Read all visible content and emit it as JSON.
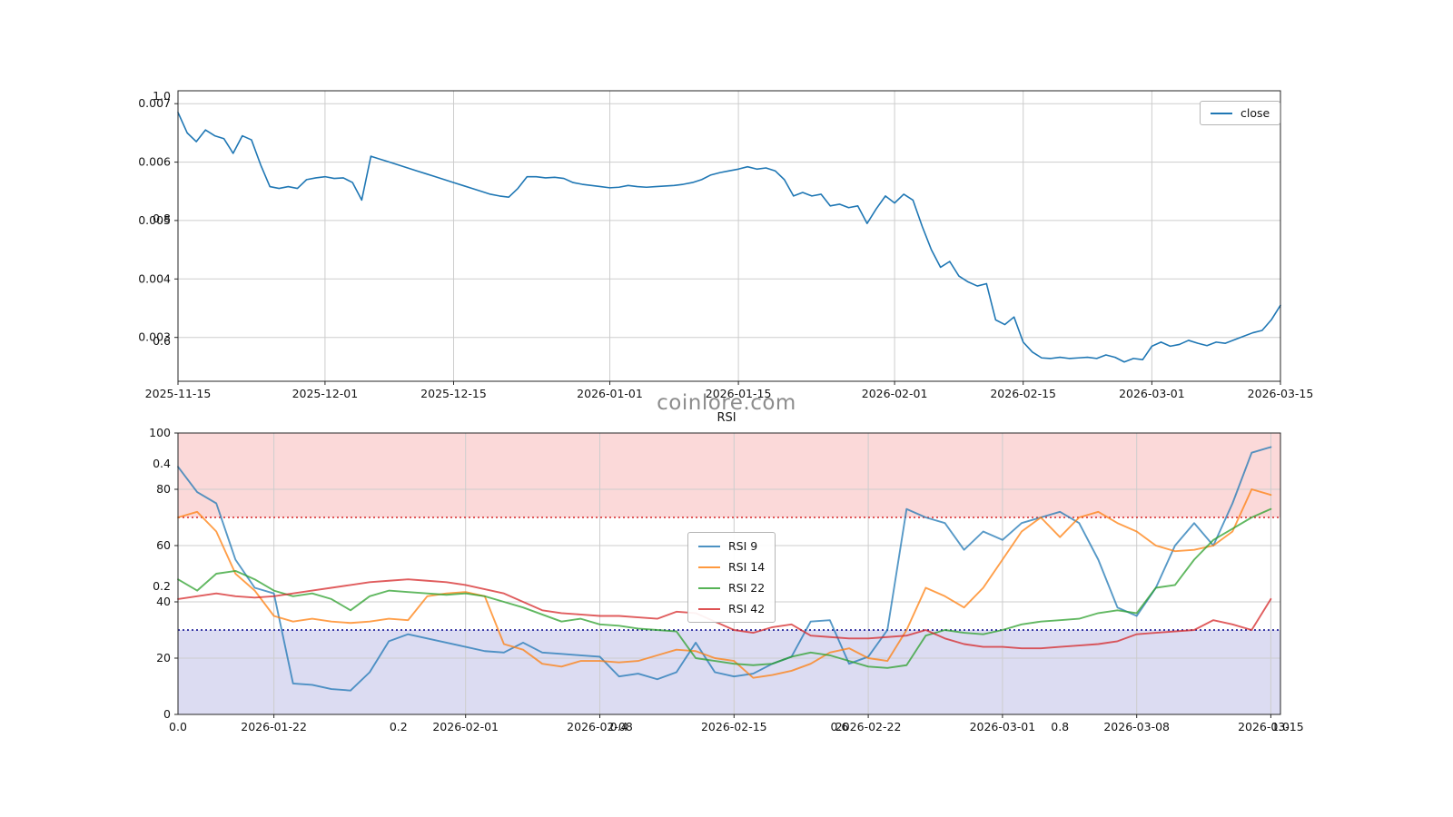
{
  "watermark": "coinlore.com",
  "secondary_axis": {
    "y_labels": [
      "1.0",
      "0.8",
      "0.6",
      "0.4",
      "0.2"
    ]
  },
  "chart_data": [
    {
      "type": "line",
      "title": "",
      "grid": true,
      "legend_position": "upper right",
      "x_start_date": "2025-11-15",
      "x_tick_labels": [
        "2025-11-15",
        "2025-12-01",
        "2025-12-15",
        "2026-01-01",
        "2026-01-15",
        "2026-02-01",
        "2026-02-15",
        "2026-03-01",
        "2026-03-15"
      ],
      "y_ticks": [
        0.003,
        0.004,
        0.005,
        0.006,
        0.007
      ],
      "ylim": [
        0.00225,
        0.00722
      ],
      "series": [
        {
          "name": "close",
          "color": "#1f77b4",
          "values": [
            0.00685,
            0.0065,
            0.00635,
            0.00655,
            0.00645,
            0.0064,
            0.00615,
            0.00645,
            0.00638,
            0.00595,
            0.00558,
            0.00555,
            0.00558,
            0.00555,
            0.0057,
            0.00573,
            0.00575,
            0.00572,
            0.00573,
            0.00565,
            0.00535,
            0.0061,
            0.00605,
            0.006,
            0.00595,
            0.0059,
            0.00585,
            0.0058,
            0.00575,
            0.0057,
            0.00565,
            0.0056,
            0.00555,
            0.0055,
            0.00545,
            0.00542,
            0.0054,
            0.00555,
            0.00575,
            0.00575,
            0.00573,
            0.00574,
            0.00572,
            0.00565,
            0.00562,
            0.0056,
            0.00558,
            0.00556,
            0.00557,
            0.0056,
            0.00558,
            0.00557,
            0.00558,
            0.00559,
            0.0056,
            0.00562,
            0.00565,
            0.0057,
            0.00578,
            0.00582,
            0.00585,
            0.00588,
            0.00592,
            0.00588,
            0.0059,
            0.00585,
            0.0057,
            0.00542,
            0.00548,
            0.00542,
            0.00545,
            0.00525,
            0.00528,
            0.00522,
            0.00525,
            0.00495,
            0.0052,
            0.00542,
            0.0053,
            0.00545,
            0.00535,
            0.0049,
            0.0045,
            0.0042,
            0.0043,
            0.00405,
            0.00395,
            0.00388,
            0.00392,
            0.0033,
            0.00322,
            0.00335,
            0.00292,
            0.00275,
            0.00265,
            0.00264,
            0.00266,
            0.00264,
            0.00265,
            0.00266,
            0.00264,
            0.0027,
            0.00266,
            0.00258,
            0.00264,
            0.00262,
            0.00285,
            0.00292,
            0.00285,
            0.00288,
            0.00295,
            0.0029,
            0.00286,
            0.00292,
            0.0029,
            0.00296,
            0.00302,
            0.00308,
            0.00312,
            0.0033,
            0.00355
          ]
        }
      ]
    },
    {
      "type": "line",
      "title": "RSI",
      "grid": true,
      "legend_position": "center",
      "x_start_date": "2026-01-17",
      "x_tick_labels": [
        "2026-01-22",
        "2026-02-01",
        "2026-02-08",
        "2026-02-15",
        "2026-02-22",
        "2026-03-01",
        "2026-03-08",
        "2026-03-15"
      ],
      "normalized_x_tick_labels": [
        "0.0",
        "0.2",
        "0.4",
        "0.6",
        "0.8",
        "1.0"
      ],
      "y_ticks": [
        0,
        20,
        40,
        60,
        80,
        100
      ],
      "ylim": [
        0,
        100
      ],
      "overbought_level": 70,
      "oversold_level": 30,
      "overbought_band_color": "#fbd9d9",
      "oversold_band_color": "#dcdcf2",
      "overbought_line_color": "#d62728",
      "oversold_line_color": "#00008b",
      "series": [
        {
          "name": "RSI 9",
          "color": "#1f77b4",
          "values": [
            88,
            79,
            75,
            55,
            45,
            43,
            11,
            10.5,
            9,
            8.5,
            15,
            26,
            28.5,
            27,
            25.5,
            24,
            22.5,
            22,
            25.5,
            22,
            21.5,
            21,
            20.5,
            13.5,
            14.5,
            12.5,
            15,
            25.5,
            15,
            13.5,
            14.5,
            18,
            20.5,
            33,
            33.5,
            18,
            20.5,
            30,
            73,
            70,
            68,
            58.5,
            65,
            62,
            68,
            70,
            72,
            68,
            55,
            38,
            35,
            45,
            60,
            68,
            60,
            75,
            93,
            95
          ]
        },
        {
          "name": "RSI 14",
          "color": "#ff7f0e",
          "values": [
            70,
            72,
            65,
            50,
            44,
            35,
            33,
            34,
            33,
            32.5,
            33,
            34,
            33.5,
            42,
            43,
            43.5,
            42,
            25,
            23,
            18,
            17,
            19,
            19,
            18.5,
            19,
            21,
            23,
            22.5,
            20,
            19,
            13,
            14,
            15.5,
            18,
            22,
            23.5,
            20,
            19,
            30,
            45,
            42,
            38,
            45,
            55,
            65,
            70,
            63,
            70,
            72,
            68,
            65,
            60,
            58,
            58.5,
            60,
            65,
            80,
            78
          ]
        },
        {
          "name": "RSI 22",
          "color": "#2ca02c",
          "values": [
            48,
            44,
            50,
            51,
            48,
            44,
            42,
            43,
            41,
            37,
            42,
            44,
            43.5,
            43,
            42.5,
            43,
            42,
            40,
            38,
            35.5,
            33,
            34,
            32,
            31.5,
            30.5,
            30,
            29.5,
            20,
            19,
            18,
            17.5,
            18,
            20.5,
            22,
            21,
            19,
            17,
            16.5,
            17.5,
            28,
            30,
            29,
            28.5,
            30,
            32,
            33,
            33.5,
            34,
            36,
            37,
            36,
            45,
            46,
            55,
            62,
            66,
            70,
            73
          ]
        },
        {
          "name": "RSI 42",
          "color": "#d62728",
          "values": [
            41,
            42,
            43,
            42,
            41.5,
            42,
            43,
            44,
            45,
            46,
            47,
            47.5,
            48,
            47.5,
            47,
            46,
            44.5,
            43,
            40,
            37,
            36,
            35.5,
            35,
            35,
            34.5,
            34,
            36.5,
            36,
            33,
            30,
            29,
            31,
            32,
            28,
            27.5,
            27,
            27,
            27.5,
            28,
            30,
            27,
            25,
            24,
            24,
            23.5,
            23.5,
            24,
            24.5,
            25,
            26,
            28.5,
            29,
            29.5,
            30,
            33.5,
            32,
            30,
            41
          ]
        }
      ]
    }
  ]
}
